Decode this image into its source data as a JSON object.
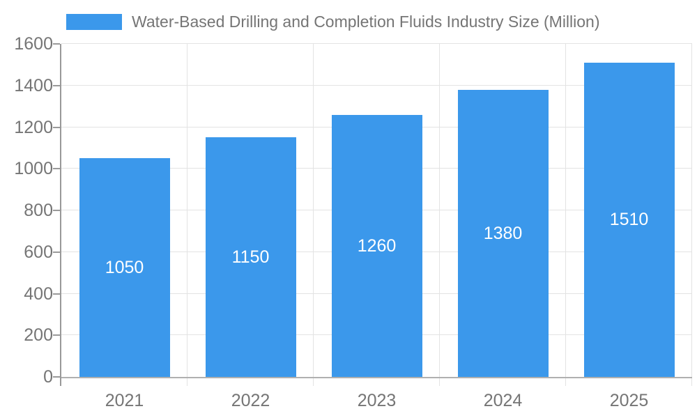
{
  "chart_data": {
    "type": "bar",
    "series_name": "Water-Based Drilling and Completion Fluids Industry Size (Million)",
    "categories": [
      "2021",
      "2022",
      "2023",
      "2024",
      "2025"
    ],
    "values": [
      1050,
      1150,
      1260,
      1380,
      1510
    ],
    "title": "",
    "xlabel": "",
    "ylabel": "",
    "ylim": [
      0,
      1600
    ],
    "ytick_step": 200,
    "yticks": [
      0,
      200,
      400,
      600,
      800,
      1000,
      1200,
      1400,
      1600
    ],
    "grid": true,
    "legend_position": "top-left",
    "value_labels": "centered-inside-bars"
  },
  "colors": {
    "bar": "#3B98EB",
    "value_label": "#ffffff",
    "tick_label": "#757575",
    "legend_text": "#757575",
    "y_axis_line": "#999999",
    "x_axis_line": "#b0b0b0",
    "gridline": "#e3e3e3",
    "background": "#ffffff"
  }
}
